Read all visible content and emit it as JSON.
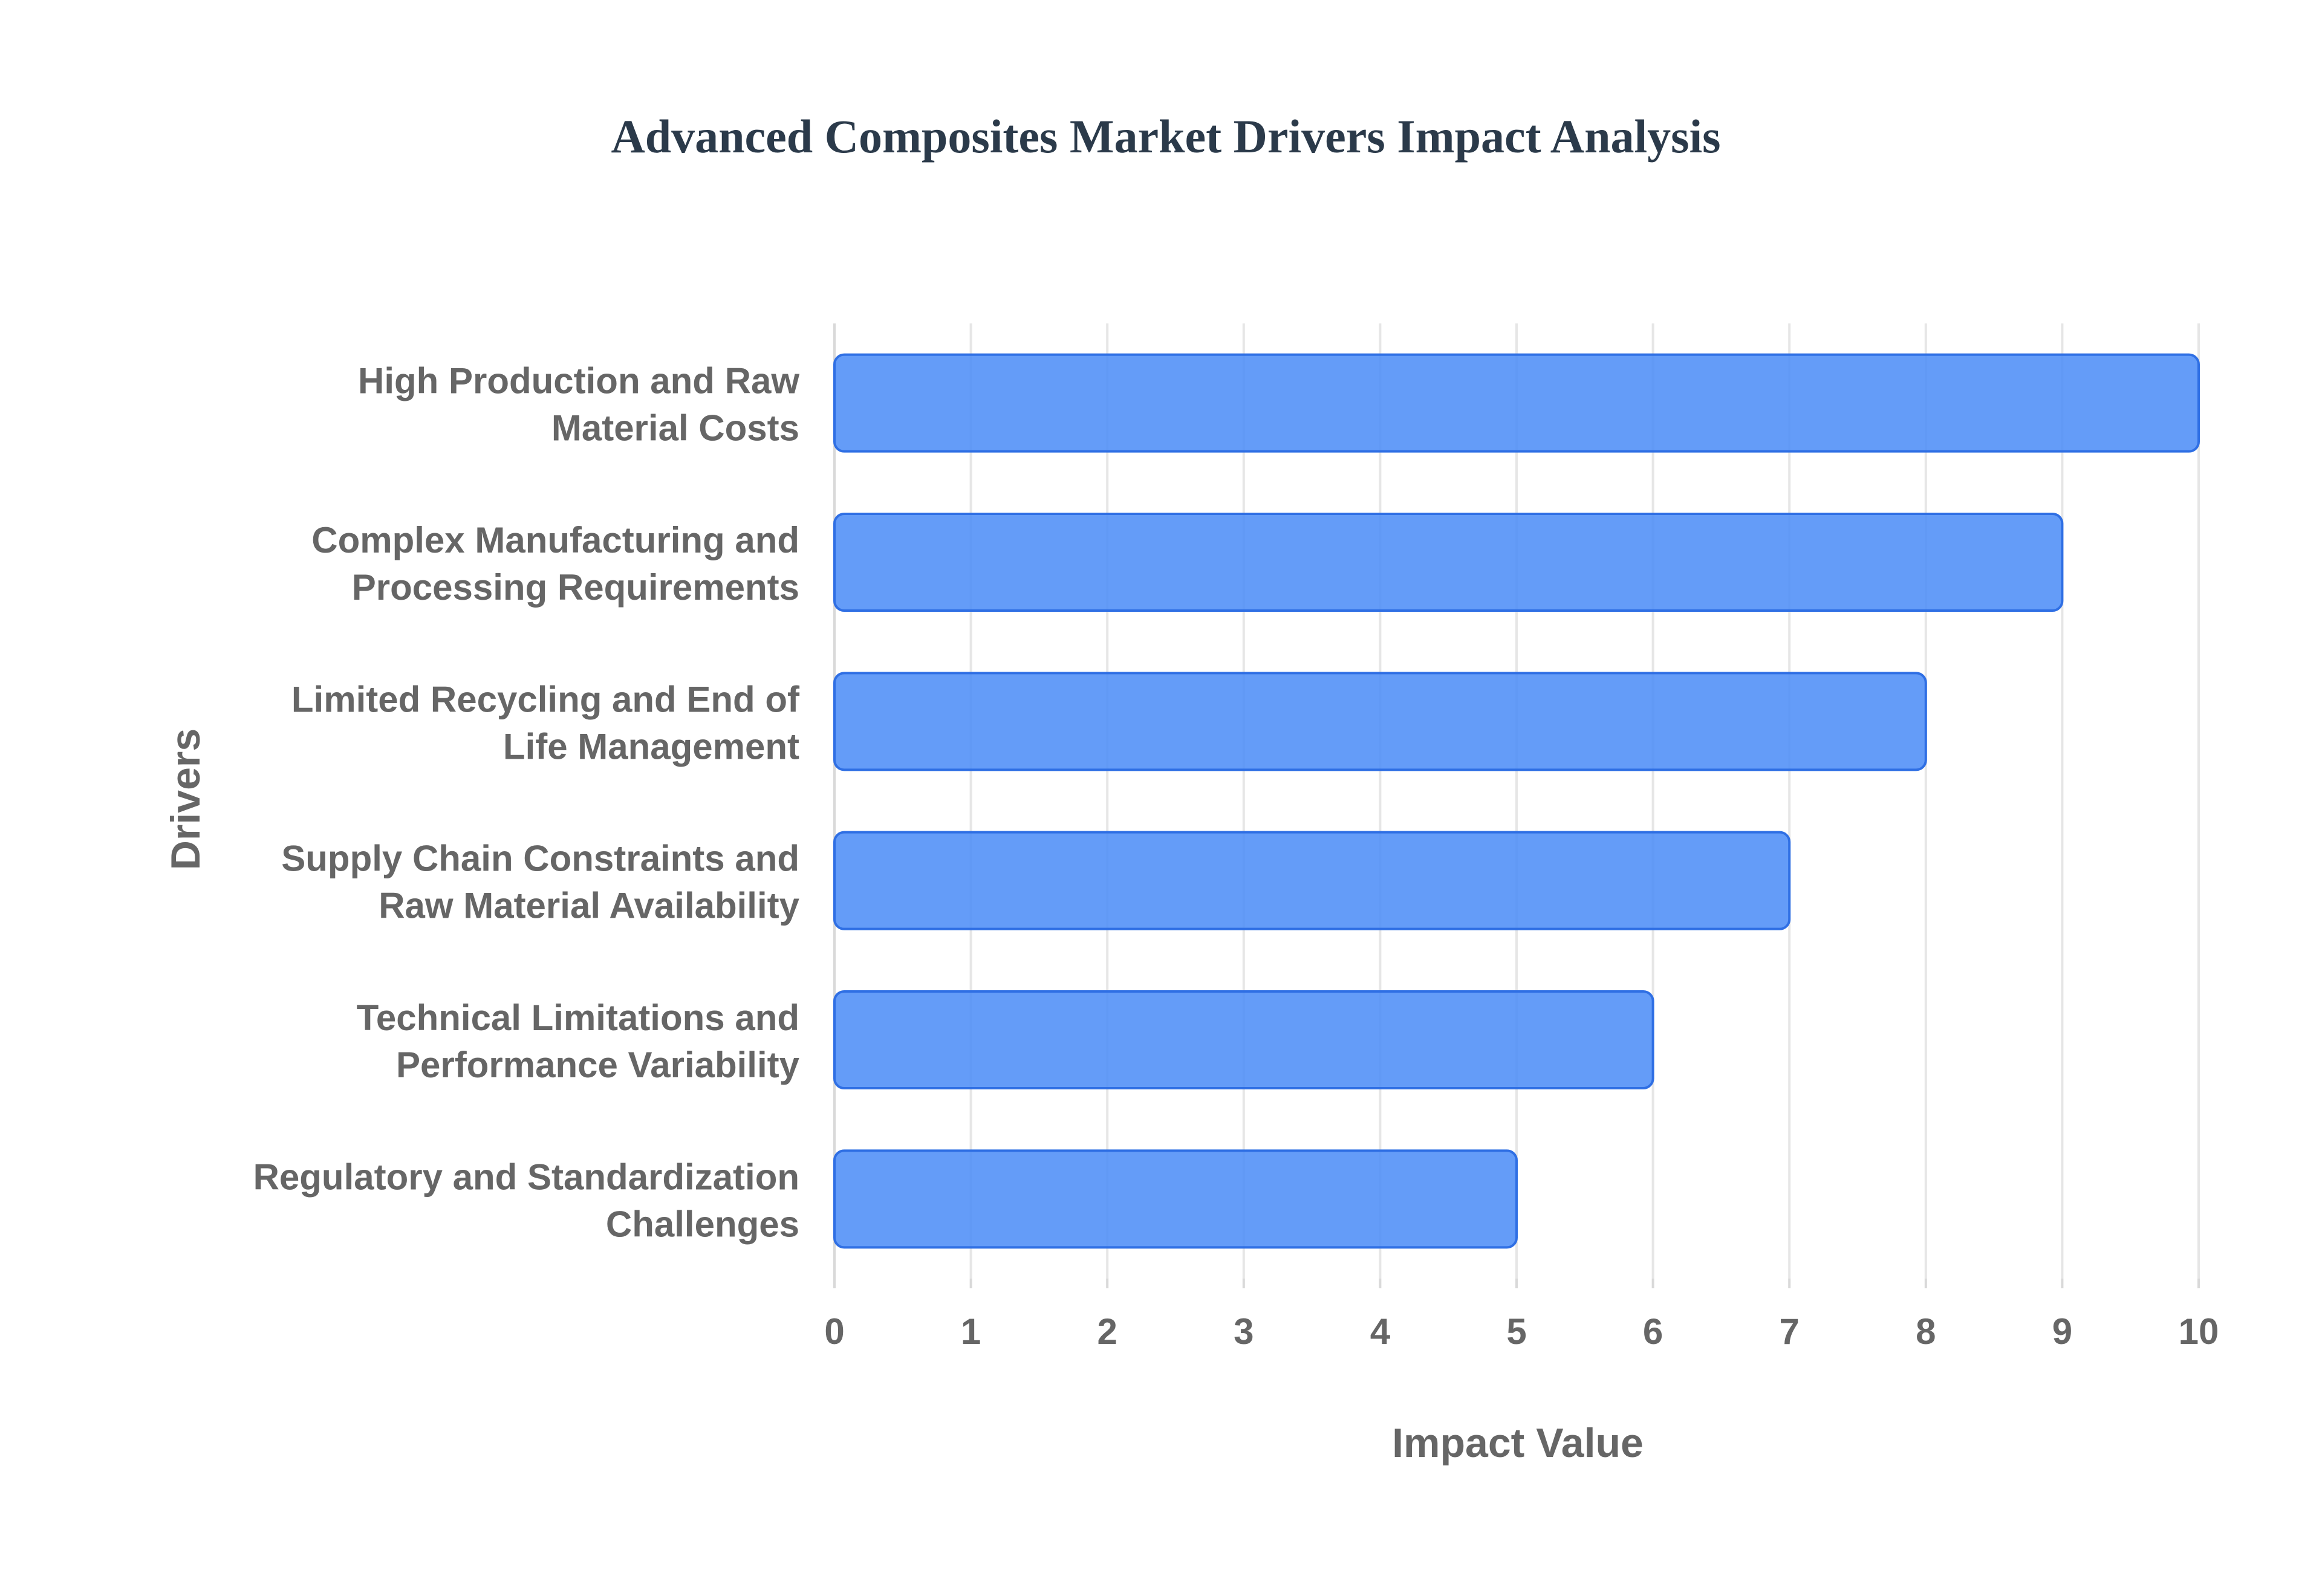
{
  "chart_data": {
    "type": "bar",
    "orientation": "horizontal",
    "title": "Advanced Composites Market Drivers Impact Analysis",
    "xlabel": "Impact Value",
    "ylabel": "Drivers",
    "categories": [
      [
        "High Production and Raw",
        "Material Costs"
      ],
      [
        "Complex Manufacturing and",
        "Processing Requirements"
      ],
      [
        "Limited Recycling and End of",
        "Life Management"
      ],
      [
        "Supply Chain Constraints and",
        "Raw Material Availability"
      ],
      [
        "Technical Limitations and",
        "Performance Variability"
      ],
      [
        "Regulatory and Standardization",
        "Challenges"
      ]
    ],
    "values": [
      10,
      9,
      8,
      7,
      6,
      5
    ],
    "xlim": [
      0,
      10
    ],
    "xticks": [
      "0",
      "1",
      "2",
      "3",
      "4",
      "5",
      "6",
      "7",
      "8",
      "9",
      "10"
    ],
    "grid": true,
    "legend": false,
    "colors": {
      "bar_fill": "#4f8ef7",
      "bar_stroke": "#2f6fe4",
      "grid": "#e6e6e6",
      "axis_line": "#d9d9d9",
      "title": "#2b3a4a",
      "text": "#666666"
    }
  }
}
